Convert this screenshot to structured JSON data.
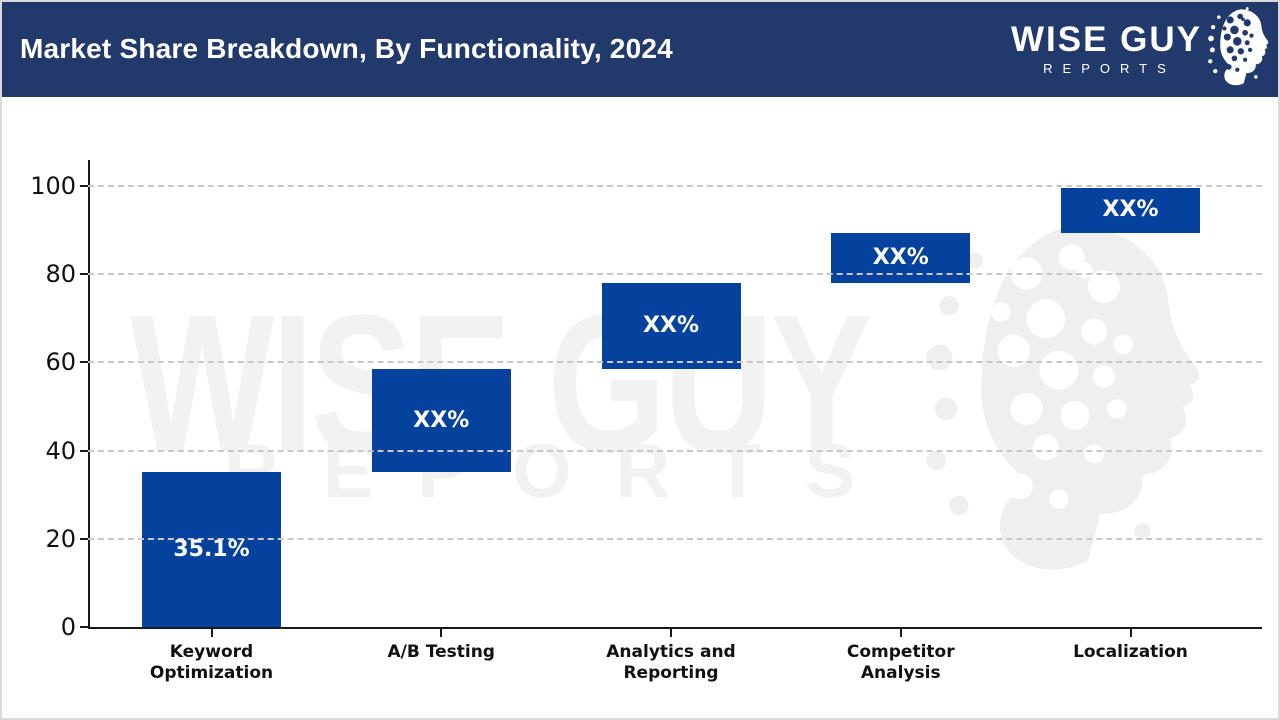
{
  "header": {
    "title": "Market Share Breakdown, By Functionality, 2024",
    "logo": {
      "line1": "WISE GUY",
      "line2": "REPORTS"
    }
  },
  "watermark": {
    "line1": "WISE GUY",
    "line2": "REPORTS"
  },
  "colors": {
    "header_bg": "#22396B",
    "bar": "#05429E",
    "bar_label_text": "#FFFFFF",
    "gridline": "#C8C8C8",
    "axis": "#1A1A1A",
    "watermark": "#F2F2F2"
  },
  "chart_data": {
    "type": "bar",
    "subtype": "waterfall",
    "title": "Market Share Breakdown, By Functionality, 2024",
    "categories": [
      "Keyword\nOptimization",
      "A/B Testing",
      "Analytics and\nReporting",
      "Competitor\nAnalysis",
      "Localization"
    ],
    "segments": [
      {
        "category": "Keyword Optimization",
        "start": 0,
        "end": 35.1,
        "label": "35.1%"
      },
      {
        "category": "A/B Testing",
        "start": 35.1,
        "end": 58.4,
        "label": "XX%"
      },
      {
        "category": "Analytics and Reporting",
        "start": 58.4,
        "end": 77.9,
        "label": "XX%"
      },
      {
        "category": "Competitor Analysis",
        "start": 77.9,
        "end": 89.3,
        "label": "XX%"
      },
      {
        "category": "Localization",
        "start": 89.3,
        "end": 99.6,
        "label": "XX%"
      }
    ],
    "cumulative_values": [
      35.1,
      58.4,
      77.9,
      89.3,
      99.6
    ],
    "bar_labels": [
      "35.1%",
      "XX%",
      "XX%",
      "XX%",
      "XX%"
    ],
    "xlabel": "",
    "ylabel": "",
    "ylim": [
      0,
      106
    ],
    "yticks": [
      0,
      20,
      40,
      60,
      80,
      100
    ],
    "grid": "horizontal dashed",
    "legend": null
  }
}
